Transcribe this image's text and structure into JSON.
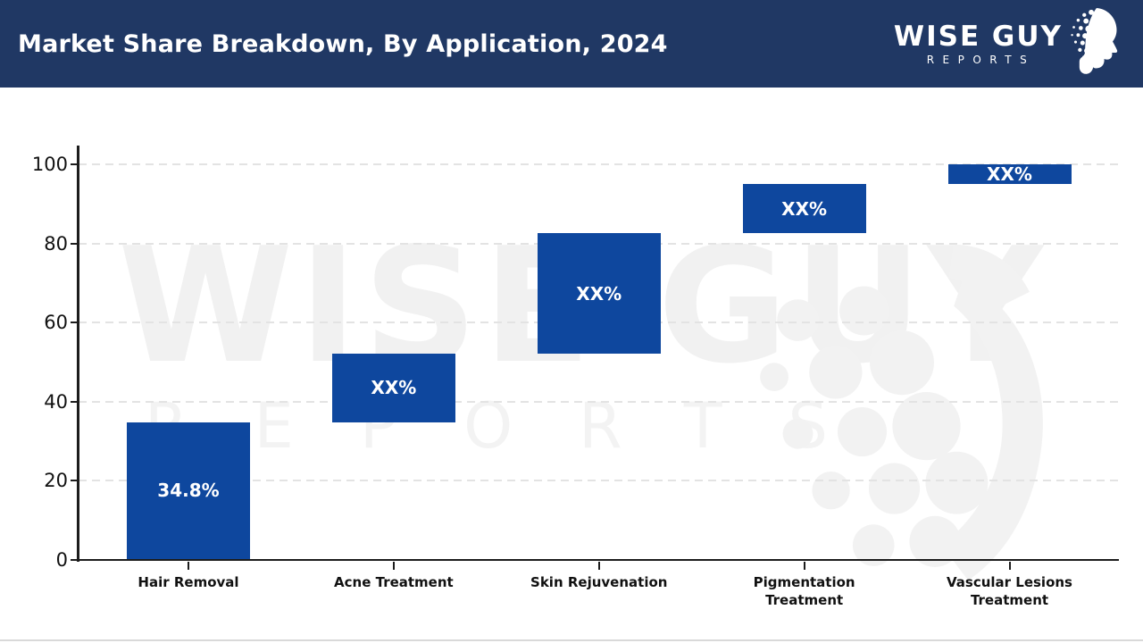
{
  "header": {
    "title": "Market Share Breakdown, By Application, 2024",
    "bg_color": "#203864",
    "logo": {
      "line1": "WISE GUY",
      "line2": "REPORTS"
    }
  },
  "watermark": {
    "line1": "WISE GUY",
    "line2": "REPORTS"
  },
  "chart_data": {
    "type": "bar",
    "subtype": "waterfall",
    "title": "Market Share Breakdown, By Application, 2024",
    "categories": [
      "Hair Removal",
      "Acne Treatment",
      "Skin Rejuvenation",
      "Pigmentation Treatment",
      "Vascular Lesions Treatment"
    ],
    "series": [
      {
        "name": "Market Share",
        "segments": [
          {
            "start": 0,
            "end": 34.8,
            "label": "34.8%"
          },
          {
            "start": 34.8,
            "end": 52,
            "label": "XX%"
          },
          {
            "start": 52,
            "end": 82.5,
            "label": "XX%"
          },
          {
            "start": 82.5,
            "end": 95,
            "label": "XX%"
          },
          {
            "start": 95,
            "end": 100,
            "label": "XX%"
          }
        ]
      }
    ],
    "xlabel": "",
    "ylabel": "",
    "ylim": [
      0,
      105
    ],
    "yticks": [
      0,
      20,
      40,
      60,
      80,
      100
    ],
    "grid": "horizontal dashed",
    "legend": "none",
    "bar_color": "#0e479e",
    "bar_label_color": "#ffffff"
  }
}
